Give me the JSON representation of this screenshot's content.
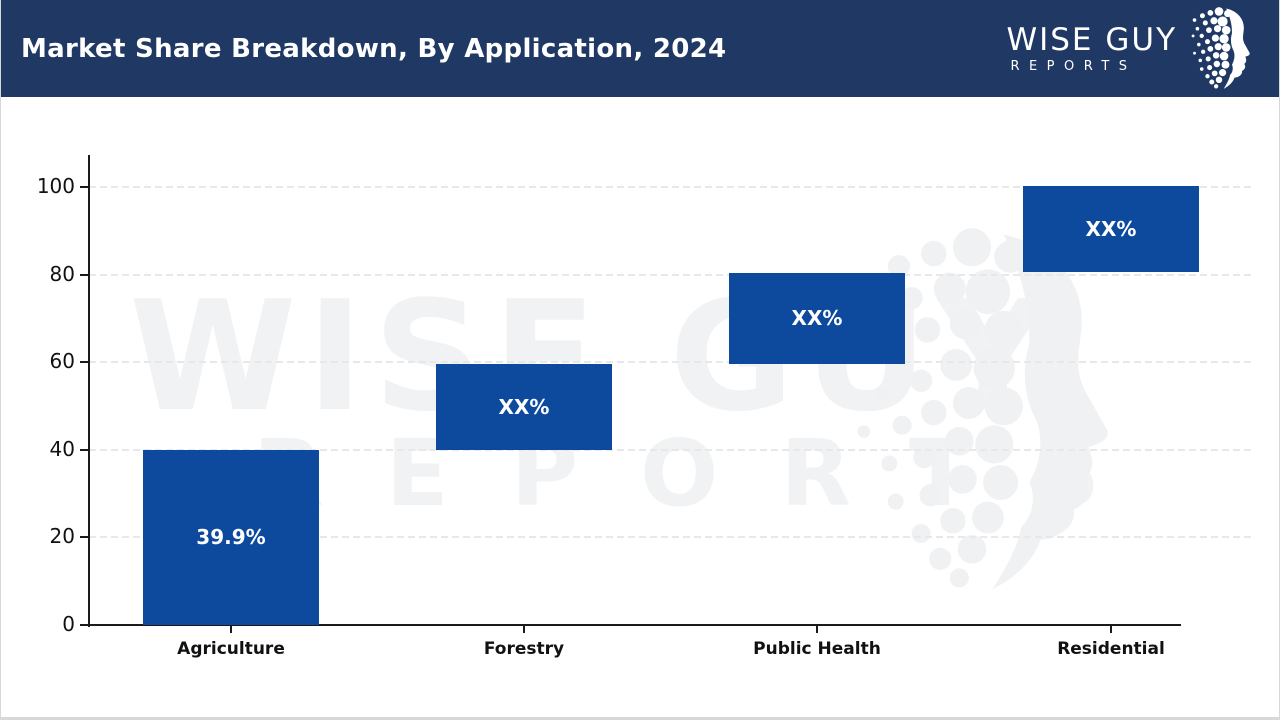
{
  "header": {
    "title": "Market Share Breakdown, By Application, 2024",
    "bg_color": "#1f3864",
    "logo": {
      "line1": "WISE GUY",
      "line2": "REPORTS"
    }
  },
  "watermark": {
    "line1": "WISE GUY",
    "line2": "REPORTS"
  },
  "chart_data": {
    "type": "bar",
    "subtype": "waterfall",
    "title": "Market Share Breakdown, By Application, 2024",
    "categories": [
      "Agriculture",
      "Forestry",
      "Public Health",
      "Residential"
    ],
    "segments": [
      {
        "category": "Agriculture",
        "start": 0,
        "end": 39.9,
        "label": "39.9%"
      },
      {
        "category": "Forestry",
        "start": 39.9,
        "end": 59.5,
        "label": "XX%"
      },
      {
        "category": "Public Health",
        "start": 59.5,
        "end": 80.4,
        "label": "XX%"
      },
      {
        "category": "Residential",
        "start": 80.6,
        "end": 100.2,
        "label": "XX%"
      }
    ],
    "yticks": [
      0,
      20,
      40,
      60,
      80,
      100
    ],
    "ylim": [
      0,
      107
    ],
    "xlabel": "",
    "ylabel": "",
    "bar_color": "#0d4a9e",
    "grid": "horizontal-dashed",
    "legend": "none",
    "watermark": "WISE GUY REPORTS"
  }
}
